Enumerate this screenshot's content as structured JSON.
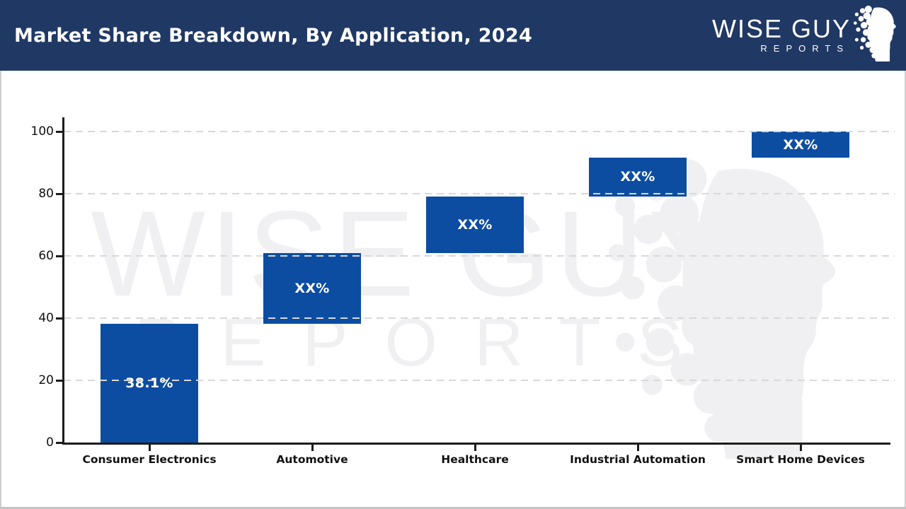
{
  "header": {
    "title": "Market Share Breakdown, By Application, 2024",
    "logo": {
      "line1": "WISE GUY",
      "line2": "REPORTS"
    }
  },
  "watermark": {
    "line1": "WISE GUY",
    "line2": "REPORTS"
  },
  "chart_data": {
    "type": "bar",
    "style": "waterfall-floating-bars",
    "title": "Market Share Breakdown, By Application, 2024",
    "xlabel": "",
    "ylabel": "",
    "ylim": [
      0,
      100
    ],
    "yticks": [
      0,
      20,
      40,
      60,
      80,
      100
    ],
    "grid": "horizontal-dashed",
    "legend": "none",
    "bar_color": "#0c4da2",
    "bar_label_color": "#ffffff",
    "categories": [
      "Consumer Electronics",
      "Automotive",
      "Healthcare",
      "Industrial Automation",
      "Smart Home Devices"
    ],
    "segments": [
      {
        "category": "Consumer Electronics",
        "start": 0,
        "end": 38.1,
        "label": "38.1%"
      },
      {
        "category": "Automotive",
        "start": 38.1,
        "end": 61.0,
        "label": "XX%"
      },
      {
        "category": "Healthcare",
        "start": 61.0,
        "end": 79.2,
        "label": "XX%"
      },
      {
        "category": "Industrial Automation",
        "start": 79.2,
        "end": 91.5,
        "label": "XX%"
      },
      {
        "category": "Smart Home Devices",
        "start": 91.5,
        "end": 100.0,
        "label": "XX%"
      }
    ]
  }
}
